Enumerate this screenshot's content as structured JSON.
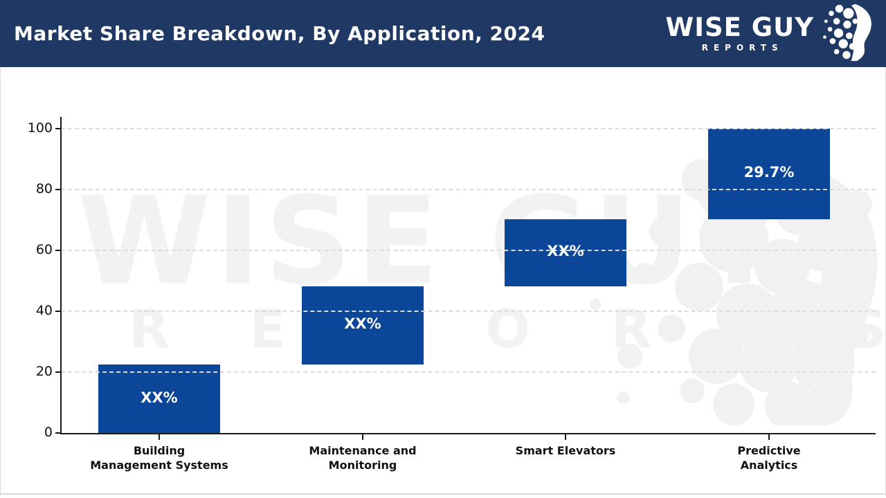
{
  "header": {
    "title": "Market Share Breakdown, By Application, 2024",
    "logo_line1": "WISE GUY",
    "logo_line2": "REPORTS"
  },
  "watermark": {
    "line1": "WISE GUY",
    "line2": "R E P O R T S"
  },
  "colors": {
    "header_bg": "#1f3864",
    "bar": "#0b4699",
    "bar_label": "#ffffff",
    "grid": "#dcdcdc",
    "axis": "#1a1a1a",
    "watermark": "#f2f2f2"
  },
  "chart_data": {
    "type": "bar",
    "variant": "waterfall (stacked market-share breakdown, segments sum to 100%)",
    "title": "Market Share Breakdown, By Application, 2024",
    "xlabel": "",
    "ylabel": "",
    "ylim": [
      0,
      100
    ],
    "yticks": [
      0,
      20,
      40,
      60,
      80,
      100
    ],
    "grid": "horizontal dashed",
    "legend": false,
    "categories": [
      "Building Management Systems",
      "Maintenance and Monitoring",
      "Smart Elevators",
      "Predictive Analytics"
    ],
    "category_label_lines": [
      [
        "Building",
        "Management Systems"
      ],
      [
        "Maintenance and",
        "Monitoring"
      ],
      [
        "Smart Elevators"
      ],
      [
        "Predictive",
        "Analytics"
      ]
    ],
    "segments": [
      {
        "category": "Building Management Systems",
        "start": 0,
        "end": 22.5,
        "value": 22.5,
        "label": "XX%"
      },
      {
        "category": "Maintenance and Monitoring",
        "start": 22.5,
        "end": 48.2,
        "value": 25.7,
        "label": "XX%"
      },
      {
        "category": "Smart Elevators",
        "start": 48.2,
        "end": 70.3,
        "value": 22.1,
        "label": "XX%"
      },
      {
        "category": "Predictive Analytics",
        "start": 70.3,
        "end": 100,
        "value": 29.7,
        "label": "29.7%"
      }
    ]
  }
}
